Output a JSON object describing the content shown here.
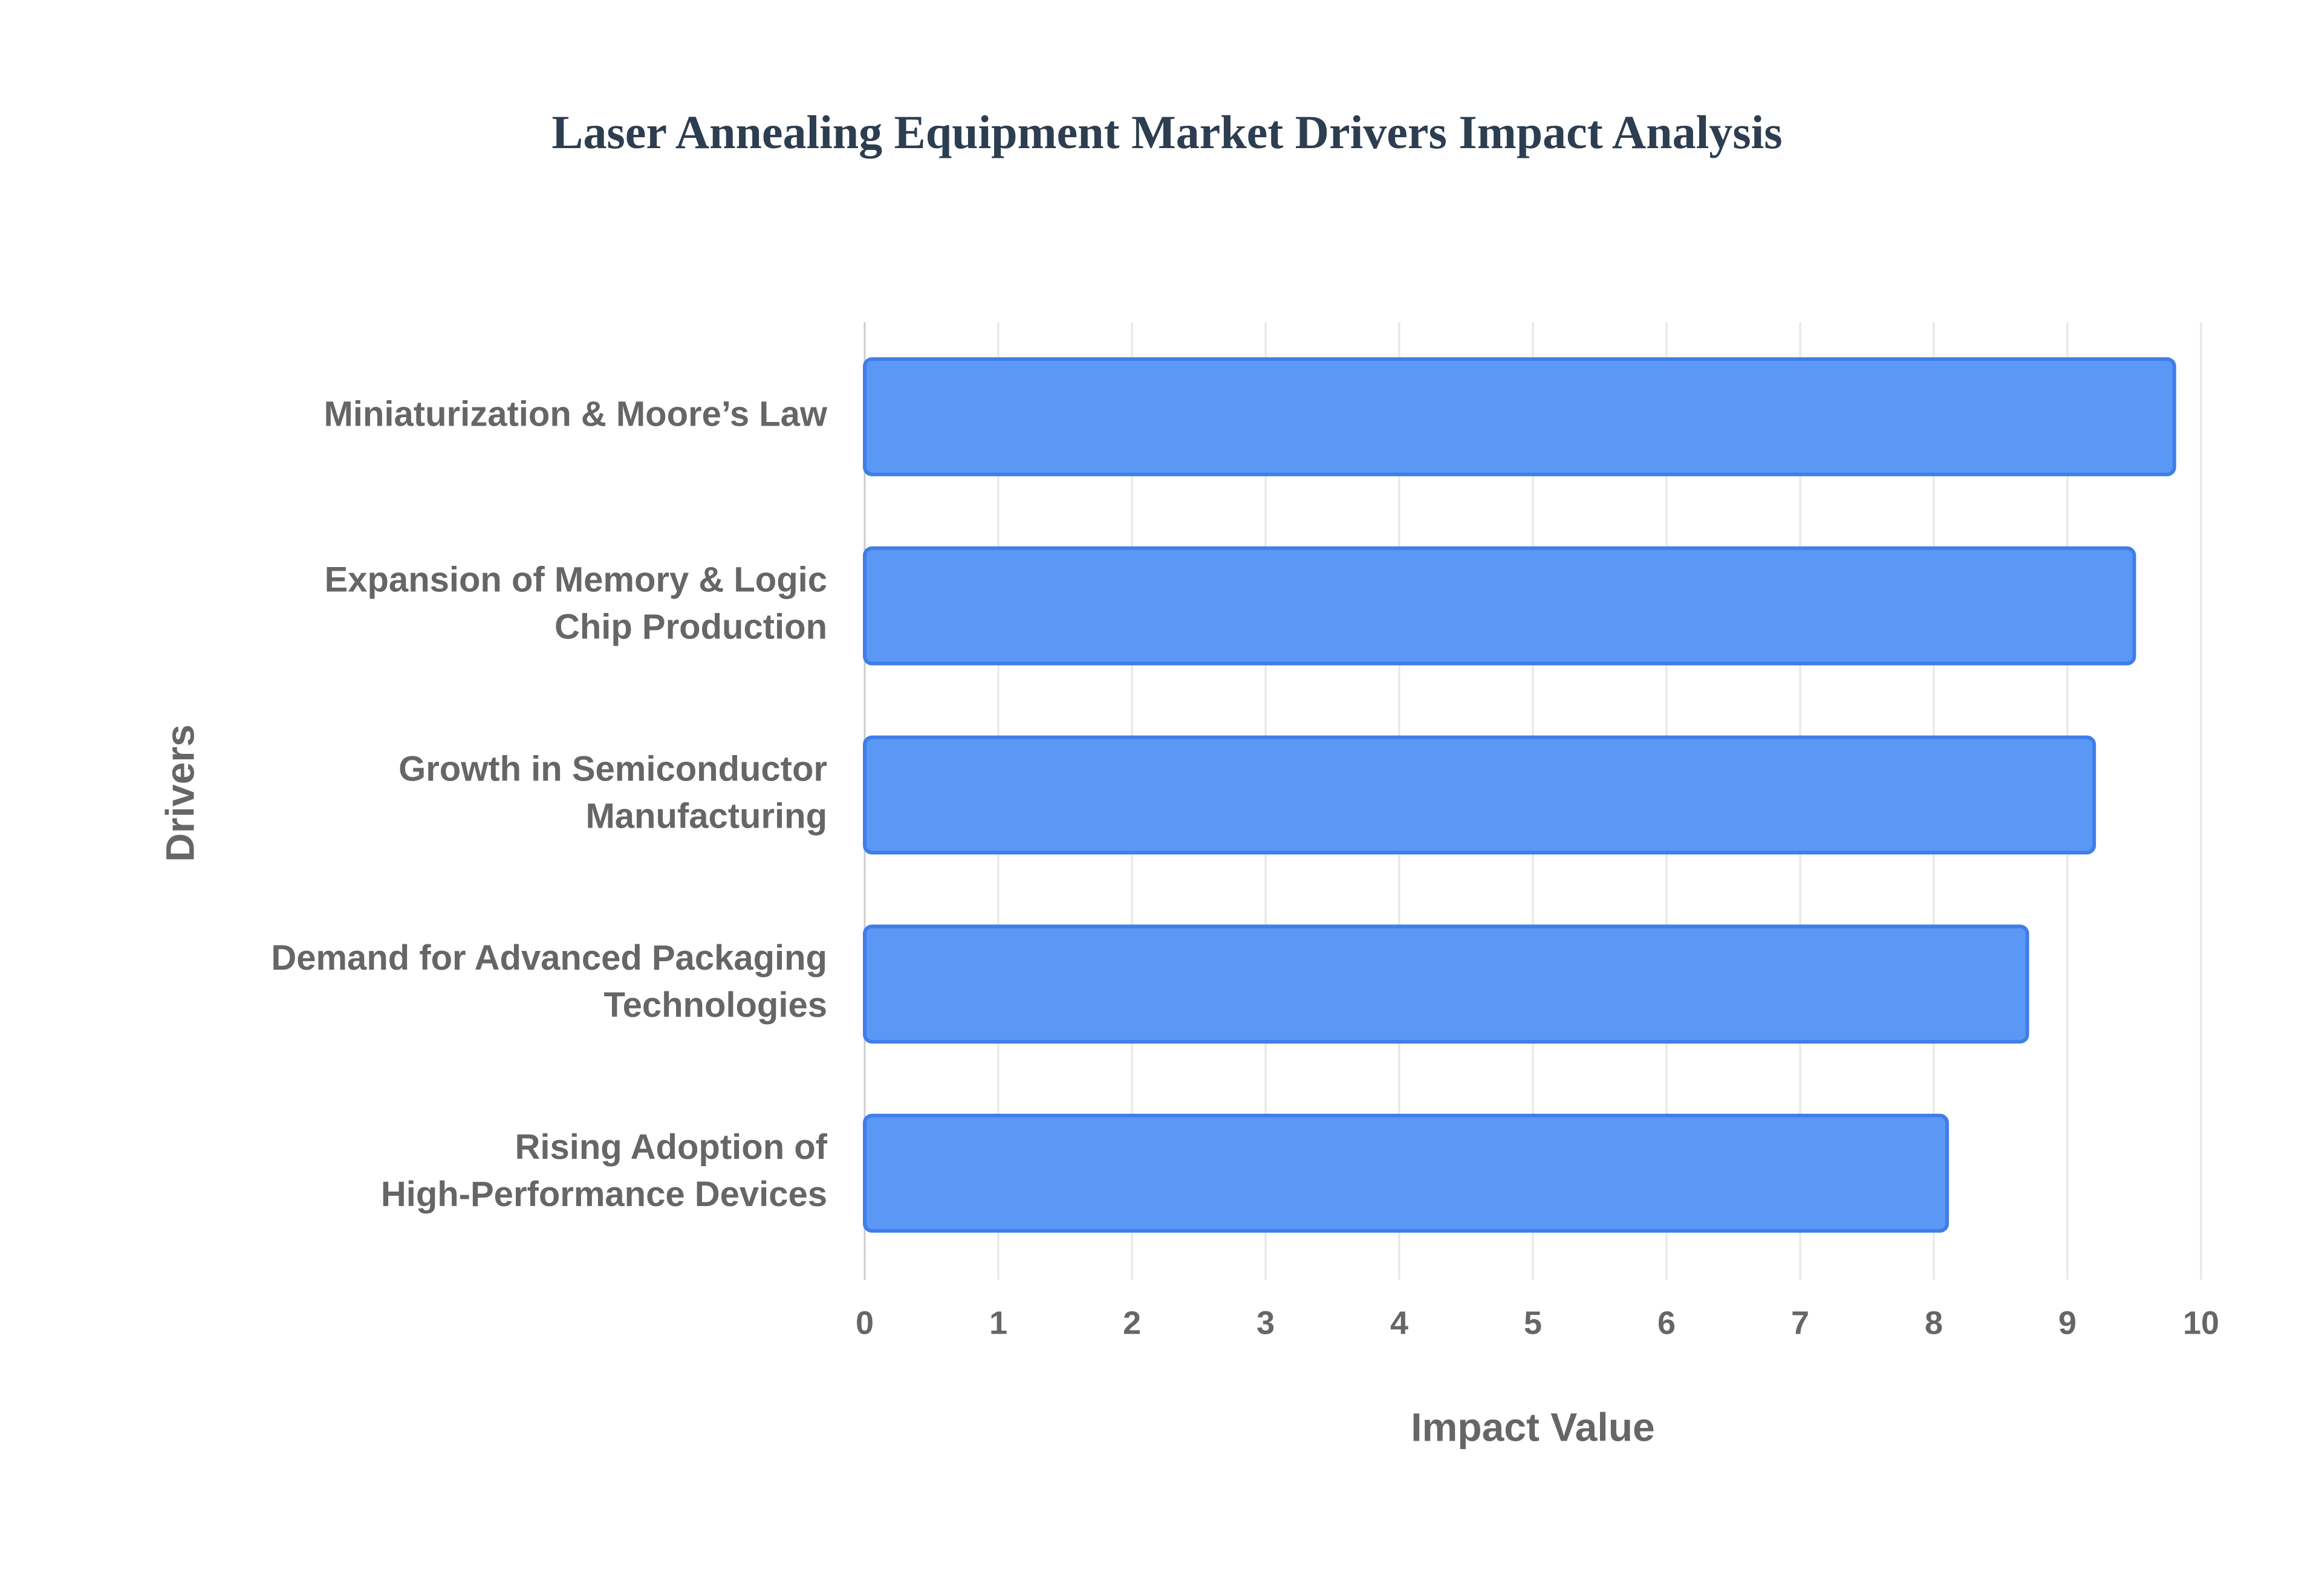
{
  "chart_data": {
    "type": "bar",
    "orientation": "horizontal",
    "title": "Laser Annealing Equipment Market Drivers Impact Analysis",
    "x_label": "Impact Value",
    "y_label": "Drivers",
    "categories": [
      [
        "Miniaturization & Moore’s Law"
      ],
      [
        "Expansion of Memory & Logic",
        "Chip Production"
      ],
      [
        "Growth in Semiconductor",
        "Manufacturing"
      ],
      [
        "Demand for Advanced Packaging",
        "Technologies"
      ],
      [
        "Rising Adoption of",
        "High-Performance Devices"
      ]
    ],
    "values": [
      9.8,
      9.5,
      9.2,
      8.7,
      8.1
    ],
    "color": "#5b97f5",
    "edge_color": "#3f7ee8",
    "xlim": [
      0,
      10
    ],
    "xticks": [
      0,
      1,
      2,
      3,
      4,
      5,
      6,
      7,
      8,
      9,
      10
    ],
    "grid": true
  }
}
